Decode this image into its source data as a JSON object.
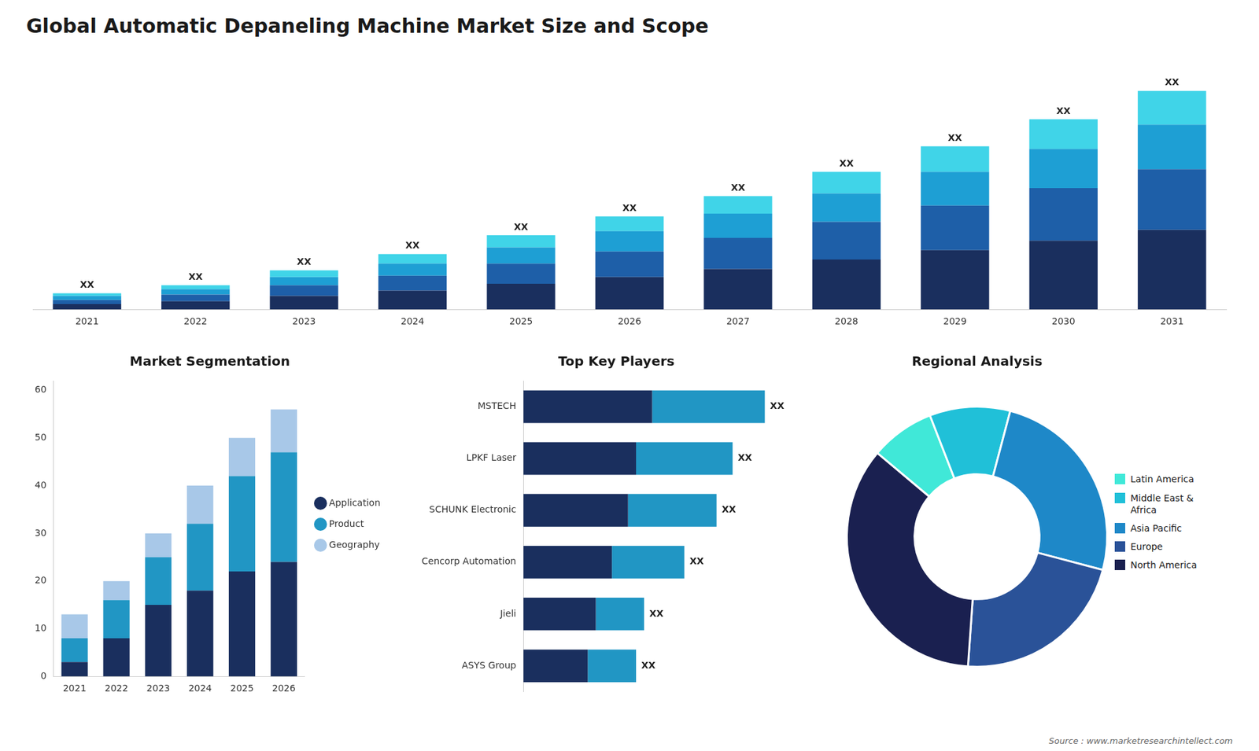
{
  "title": "Global Automatic Depaneling Machine Market Size and Scope",
  "annotations": [
    {
      "text": "Source : www.marketresearchintellect.com"
    }
  ],
  "chart_data": [
    {
      "type": "bar",
      "stacked": true,
      "categories": [
        "2021",
        "2022",
        "2023",
        "2024",
        "2025",
        "2026",
        "2027",
        "2028",
        "2029",
        "2030",
        "2031"
      ],
      "series": [
        {
          "color": "#1a2f5e",
          "values": [
            4,
            6,
            10,
            14,
            19,
            24,
            30,
            37,
            44,
            51,
            59
          ]
        },
        {
          "color": "#1e5fa8",
          "values": [
            3,
            5,
            8,
            11,
            15,
            19,
            23,
            28,
            33,
            39,
            45
          ]
        },
        {
          "color": "#1e9fd4",
          "values": [
            3,
            4,
            6,
            9,
            12,
            15,
            18,
            21,
            25,
            29,
            33
          ]
        },
        {
          "color": "#40d4e8",
          "values": [
            2,
            3,
            5,
            7,
            9,
            11,
            13,
            16,
            19,
            22,
            25
          ]
        }
      ],
      "ylim": [
        0,
        192
      ],
      "tick_labels": "x",
      "grid": false,
      "annotations": [
        {
          "category": "2021",
          "text": "XX"
        },
        {
          "category": "2022",
          "text": "XX"
        },
        {
          "category": "2023",
          "text": "XX"
        },
        {
          "category": "2024",
          "text": "XX"
        },
        {
          "category": "2025",
          "text": "XX"
        },
        {
          "category": "2026",
          "text": "XX"
        },
        {
          "category": "2027",
          "text": "XX"
        },
        {
          "category": "2028",
          "text": "XX"
        },
        {
          "category": "2029",
          "text": "XX"
        },
        {
          "category": "2030",
          "text": "XX"
        },
        {
          "category": "2031",
          "text": "XX"
        }
      ]
    },
    {
      "type": "bar",
      "title": "Market Segmentation",
      "stacked": true,
      "categories": [
        "2021",
        "2022",
        "2023",
        "2024",
        "2025",
        "2026"
      ],
      "series": [
        {
          "name": "Application",
          "color": "#1a2f5e",
          "values": [
            3,
            8,
            15,
            18,
            22,
            24
          ]
        },
        {
          "name": "Product",
          "color": "#2196c4",
          "values": [
            5,
            8,
            10,
            14,
            20,
            23
          ]
        },
        {
          "name": "Geography",
          "color": "#a8c8e8",
          "values": [
            5,
            4,
            5,
            8,
            8,
            9
          ]
        }
      ],
      "ylim": [
        0,
        62
      ],
      "yticks": [
        0,
        10,
        20,
        30,
        40,
        50,
        60
      ],
      "grid": false,
      "legend": "right"
    },
    {
      "type": "bar",
      "title": "Top Key Players",
      "orientation": "horizontal",
      "stacked": true,
      "categories": [
        "MSTECH",
        "LPKF Laser",
        "SCHUNK Electronic",
        "Cencorp Automation",
        "Jieli",
        "ASYS Group"
      ],
      "series": [
        {
          "color": "#1a2f5e",
          "values": [
            32,
            28,
            26,
            22,
            18,
            16
          ]
        },
        {
          "color": "#2196c4",
          "values": [
            28,
            24,
            22,
            18,
            12,
            12
          ]
        }
      ],
      "xlim": [
        0,
        72
      ],
      "tick_labels": "y",
      "grid": false,
      "annotations": [
        {
          "category": "MSTECH",
          "text": "XX"
        },
        {
          "category": "LPKF Laser",
          "text": "XX"
        },
        {
          "category": "SCHUNK Electronic",
          "text": "XX"
        },
        {
          "category": "Cencorp Automation",
          "text": "XX"
        },
        {
          "category": "Jieli",
          "text": "XX"
        },
        {
          "category": "ASYS Group",
          "text": "XX"
        }
      ]
    },
    {
      "type": "doughnut",
      "title": "Regional Analysis",
      "categories": [
        "Latin America",
        "Middle East &\nAfrica",
        "Asia Pacific",
        "Europe",
        "North America"
      ],
      "values": [
        8,
        10,
        25,
        22,
        35
      ],
      "colors": [
        "#40e8d8",
        "#20c0d8",
        "#1e88c8",
        "#2a5298",
        "#1a2050"
      ],
      "legend": "right"
    }
  ]
}
